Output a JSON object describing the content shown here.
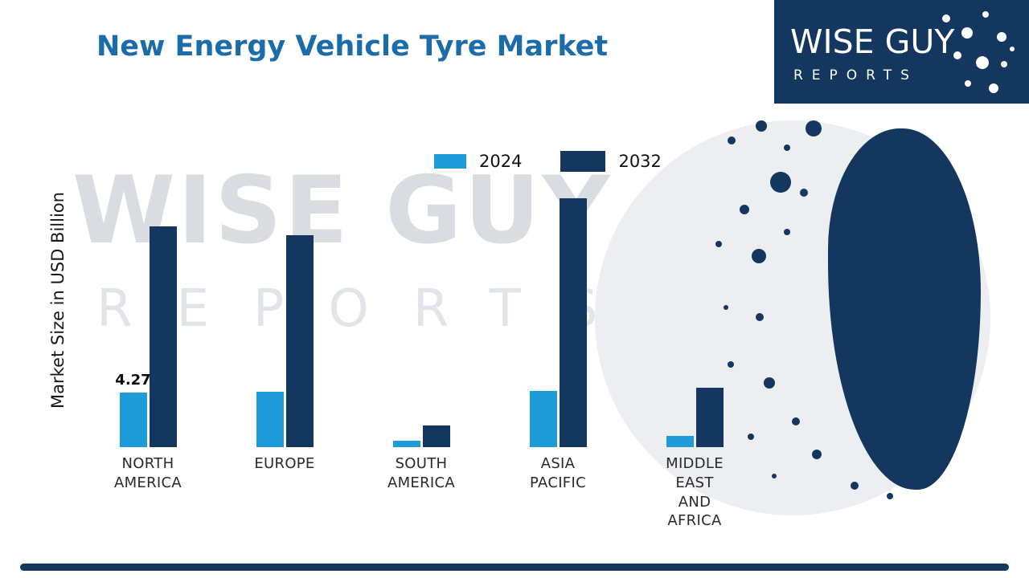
{
  "page": {
    "title": "New Energy Vehicle Tyre Market",
    "ylabel": "Market Size in USD Billion"
  },
  "logo": {
    "line1": "WISE GUY",
    "line2": "REPORTS"
  },
  "watermark": {
    "line1": "WISE GUY",
    "line2": "REPORTS"
  },
  "colors": {
    "title_blue": "#1b6ca8",
    "navy": "#13375f",
    "series_2024": "#1e9cd7",
    "series_2032": "#13375f",
    "watermark_gray": "#d9dde2"
  },
  "chart_data": {
    "type": "bar",
    "title": "New Energy Vehicle Tyre Market",
    "ylabel": "Market Size in USD Billion",
    "ylim": [
      0,
      20
    ],
    "grid": false,
    "legend_position": "top",
    "categories": [
      "NORTH AMERICA",
      "EUROPE",
      "SOUTH AMERICA",
      "ASIA PACIFIC",
      "MIDDLE EAST AND AFRICA"
    ],
    "category_lines": [
      [
        "NORTH",
        "AMERICA"
      ],
      [
        "EUROPE"
      ],
      [
        "SOUTH",
        "AMERICA"
      ],
      [
        "ASIA",
        "PACIFIC"
      ],
      [
        "MIDDLE",
        "EAST",
        "AND",
        "AFRICA"
      ]
    ],
    "series": [
      {
        "name": "2024",
        "color": "#1e9cd7",
        "values": [
          4.27,
          4.3,
          0.5,
          4.4,
          0.9
        ]
      },
      {
        "name": "2032",
        "color": "#13375f",
        "values": [
          17.2,
          16.5,
          1.7,
          19.4,
          4.6
        ]
      }
    ],
    "annotation": {
      "text": "4.27",
      "category_index": 0,
      "series_index": 0
    }
  }
}
